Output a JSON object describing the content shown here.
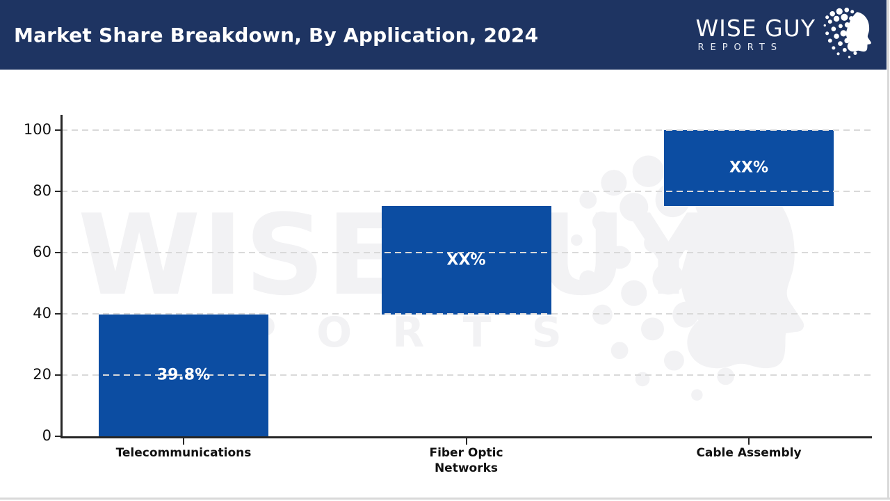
{
  "header": {
    "title": "Market Share Breakdown, By Application, 2024",
    "logo": {
      "wordmark": "WISE GUY",
      "wordmark_sub": "REPORTS"
    }
  },
  "watermark": {
    "line1": "WISE GUY",
    "line2": "REPORTS"
  },
  "colors": {
    "header_bg": "#1e3462",
    "bar": "#0c4da2",
    "grid": "#d9d9d9",
    "axis": "#262626",
    "watermark": "#f2f2f4",
    "border": "#d9d9d9",
    "title_text": "#ffffff",
    "tick_text": "#111111"
  },
  "chart_data": {
    "type": "bar",
    "subtype": "stepped-waterfall",
    "title": "Market Share Breakdown, By Application, 2024",
    "categories": [
      "Telecommunications",
      "Fiber Optic\nNetworks",
      "Cable Assembly"
    ],
    "segments": [
      {
        "start": 0,
        "end": 39.8,
        "label": "39.8%"
      },
      {
        "start": 39.8,
        "end": 75.3,
        "label": "XX%"
      },
      {
        "start": 75.3,
        "end": 100,
        "label": "XX%"
      }
    ],
    "xlabel": "",
    "ylabel": "",
    "ylim": [
      0,
      105
    ],
    "yticks": [
      0,
      20,
      40,
      60,
      80,
      100
    ],
    "grid": "horizontal-dashed",
    "legend": "none",
    "bar_color": "#0c4da2",
    "value_label_color": "#ffffff"
  }
}
